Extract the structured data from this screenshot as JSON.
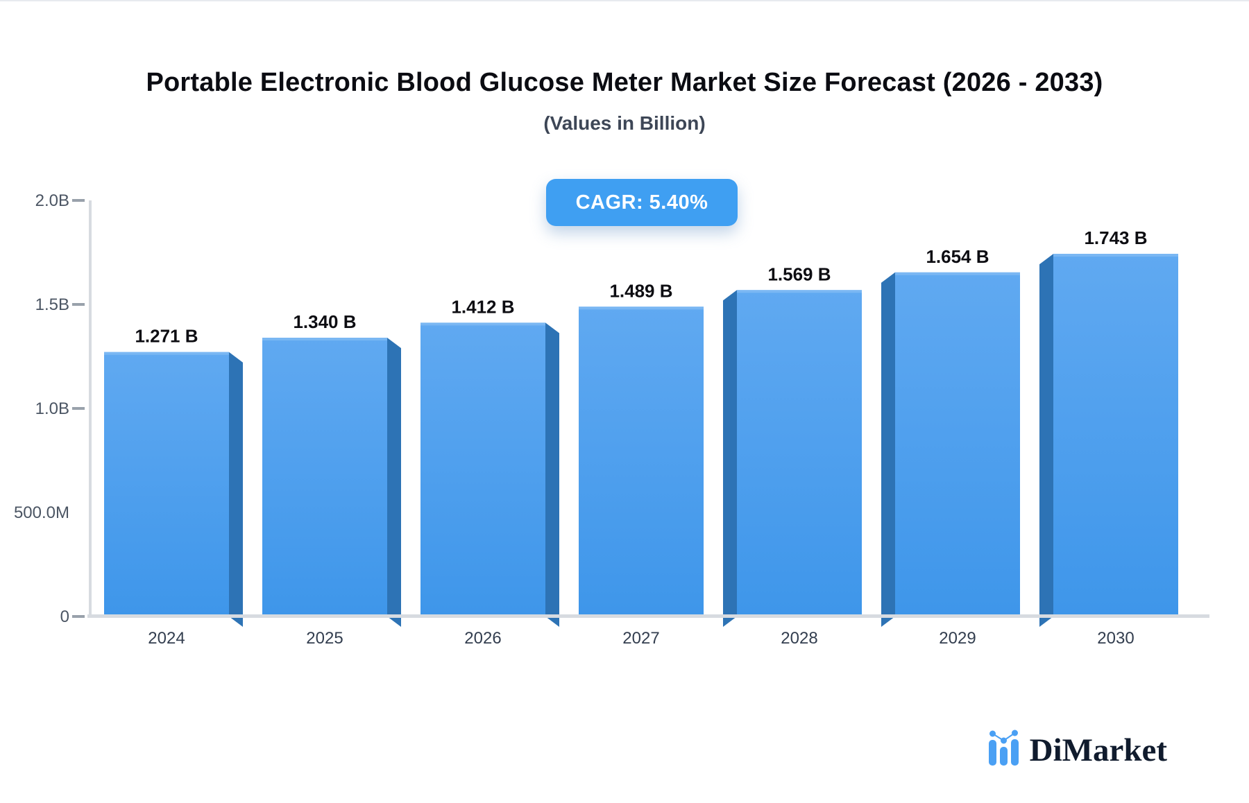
{
  "badge": {
    "label": "CAGR: 5.40%",
    "bg": "#3f9ff2",
    "text_color": "#ffffff"
  },
  "chart_data": {
    "type": "bar",
    "title": "Portable Electronic Blood Glucose Meter Market Size Forecast (2026 - 2033)",
    "subtitle": "(Values in Billion)",
    "categories": [
      "2024",
      "2025",
      "2026",
      "2027",
      "2028",
      "2029",
      "2030"
    ],
    "values": [
      1.271,
      1.34,
      1.412,
      1.489,
      1.569,
      1.654,
      1.743
    ],
    "value_labels": [
      "1.271 B",
      "1.340 B",
      "1.412 B",
      "1.489 B",
      "1.569 B",
      "1.654 B",
      "1.743 B"
    ],
    "xlabel": "",
    "ylabel": "",
    "ylim": [
      0,
      2.0
    ],
    "yticks": [
      {
        "label": "2.0B",
        "value": 2.0,
        "dash": true
      },
      {
        "label": "1.5B",
        "value": 1.5,
        "dash": true
      },
      {
        "label": "1.0B",
        "value": 1.0,
        "dash": true
      },
      {
        "label": "500.0M",
        "value": 0.5,
        "dash": false
      },
      {
        "label": "0",
        "value": 0.0,
        "dash": true
      }
    ],
    "grid": false,
    "legend": false,
    "bar_colors": {
      "face_top": "#60a9f1",
      "face_bottom": "#3e96ea",
      "side": "#2d73b5",
      "top_highlight": "#7ab7f3"
    },
    "axis_color": "#d7dbe0",
    "tick_dash_color": "#99a1ab",
    "tick_label_color": "#4b5563",
    "category_label_color": "#333e4f",
    "value_label_color": "#0d0d12"
  },
  "watermark": {
    "brand": "DiMarket",
    "icon": "dimarket-bar-chart-icon",
    "icon_color": "#4aa0f4",
    "text_color": "#101b2d"
  }
}
